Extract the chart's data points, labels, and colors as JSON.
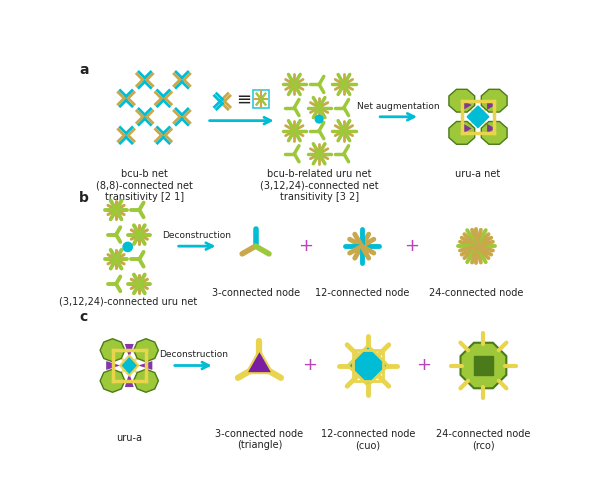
{
  "background_color": "#ffffff",
  "panel_a_label": "a",
  "panel_b_label": "b",
  "panel_c_label": "c",
  "label_bcu_b": "bcu-b net\n(8,8)-connected net\ntransitivity [2 1]",
  "label_bcu_b_related": "bcu-b-related uru net\n(3,12,24)-connected net\ntransitivity [3 2]",
  "label_uru_a_net": "uru-a net",
  "arrow_net_augmentation": "Net augmentation",
  "arrow_deconstruction": "Deconstruction",
  "label_3connected_b": "3-connected node",
  "label_12connected_b": "12-connected node",
  "label_24connected_b": "24-connected node",
  "label_3connected_c": "3-connected node\n(triangle)",
  "label_12connected_c": "12-connected node\n(cuo)",
  "label_24connected_c": "24-connected node\n(rco)",
  "label_uru_net_b": "(3,12,24)-connected uru net",
  "label_uru_a_c": "uru-a",
  "color_cyan": "#00bcd4",
  "color_gold": "#c8a84b",
  "color_yellow": "#e8d44d",
  "color_green_light": "#9dc83a",
  "color_green": "#7ab228",
  "color_dark_green": "#4a7a1a",
  "color_purple": "#7b1fa2",
  "color_arrow": "#00bcd4",
  "color_text": "#222222",
  "color_plus": "#bb44bb",
  "font_size_label": 7.0,
  "font_size_panel": 10
}
